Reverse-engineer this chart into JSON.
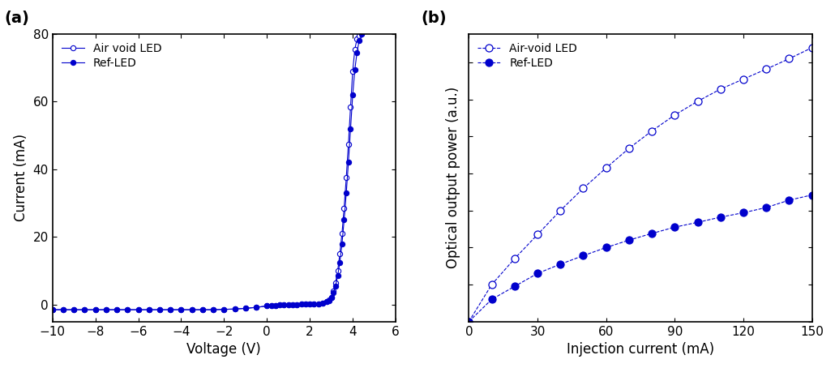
{
  "panel_a": {
    "xlabel": "Voltage (V)",
    "ylabel": "Current (mA)",
    "xlim": [
      -10,
      6
    ],
    "ylim": [
      -5,
      80
    ],
    "xticks": [
      -10,
      -8,
      -6,
      -4,
      -2,
      0,
      2,
      4,
      6
    ],
    "yticks": [
      0,
      20,
      40,
      60,
      80
    ],
    "ref_label": "Ref-LED",
    "air_label": "Air void LED",
    "color": "#0000CC",
    "ref_voltage": [
      -10.0,
      -9.5,
      -9.0,
      -8.5,
      -8.0,
      -7.5,
      -7.0,
      -6.5,
      -6.0,
      -5.5,
      -5.0,
      -4.5,
      -4.0,
      -3.5,
      -3.0,
      -2.5,
      -2.0,
      -1.5,
      -1.0,
      -0.5,
      0.0,
      0.2,
      0.4,
      0.6,
      0.8,
      1.0,
      1.2,
      1.4,
      1.6,
      1.8,
      2.0,
      2.2,
      2.4,
      2.6,
      2.8,
      2.9,
      3.0,
      3.1,
      3.2,
      3.3,
      3.4,
      3.5,
      3.6,
      3.7,
      3.8,
      3.9,
      4.0,
      4.1,
      4.2,
      4.3,
      4.4
    ],
    "ref_current": [
      -1.5,
      -1.5,
      -1.5,
      -1.5,
      -1.5,
      -1.5,
      -1.5,
      -1.5,
      -1.5,
      -1.5,
      -1.5,
      -1.5,
      -1.5,
      -1.5,
      -1.5,
      -1.5,
      -1.4,
      -1.3,
      -1.1,
      -0.8,
      -0.4,
      -0.3,
      -0.2,
      -0.1,
      0.0,
      0.0,
      0.0,
      0.0,
      0.1,
      0.1,
      0.1,
      0.2,
      0.3,
      0.5,
      0.8,
      1.2,
      2.0,
      3.5,
      5.5,
      8.5,
      12.5,
      18.0,
      25.0,
      33.0,
      42.0,
      52.0,
      62.0,
      69.5,
      74.5,
      78.0,
      80.0
    ],
    "air_voltage": [
      -10.0,
      -9.5,
      -9.0,
      -8.5,
      -8.0,
      -7.5,
      -7.0,
      -6.5,
      -6.0,
      -5.5,
      -5.0,
      -4.5,
      -4.0,
      -3.5,
      -3.0,
      -2.5,
      -2.0,
      -1.5,
      -1.0,
      -0.5,
      0.0,
      0.2,
      0.4,
      0.6,
      0.8,
      1.0,
      1.2,
      1.4,
      1.6,
      1.8,
      2.0,
      2.2,
      2.4,
      2.6,
      2.8,
      2.9,
      3.0,
      3.1,
      3.2,
      3.3,
      3.4,
      3.5,
      3.6,
      3.7,
      3.8,
      3.9,
      4.0,
      4.1,
      4.2,
      4.3,
      4.4
    ],
    "air_current": [
      -1.5,
      -1.5,
      -1.5,
      -1.5,
      -1.5,
      -1.5,
      -1.5,
      -1.5,
      -1.5,
      -1.5,
      -1.5,
      -1.5,
      -1.5,
      -1.5,
      -1.5,
      -1.5,
      -1.4,
      -1.3,
      -1.1,
      -0.8,
      -0.4,
      -0.3,
      -0.2,
      -0.1,
      0.0,
      0.0,
      0.0,
      0.0,
      0.1,
      0.1,
      0.1,
      0.2,
      0.3,
      0.5,
      0.9,
      1.4,
      2.2,
      4.0,
      6.5,
      10.0,
      15.0,
      21.0,
      28.5,
      37.5,
      47.5,
      58.5,
      69.0,
      75.5,
      78.5,
      79.5,
      80.5
    ]
  },
  "panel_b": {
    "xlabel": "Injection current (mA)",
    "ylabel": "Optical output power (a.u.)",
    "xlim": [
      0,
      150
    ],
    "xticks": [
      0,
      30,
      60,
      90,
      120,
      150
    ],
    "ref_label": "Ref-LED",
    "air_label": "Air-void LED",
    "color": "#0000CC",
    "ref_current": [
      10,
      20,
      30,
      40,
      50,
      60,
      70,
      80,
      90,
      100,
      110,
      120,
      130,
      140,
      150
    ],
    "ref_power": [
      0.06,
      0.095,
      0.13,
      0.155,
      0.178,
      0.2,
      0.22,
      0.238,
      0.255,
      0.268,
      0.282,
      0.294,
      0.308,
      0.328,
      0.342
    ],
    "air_current": [
      10,
      20,
      30,
      40,
      50,
      60,
      70,
      80,
      90,
      100,
      110,
      120,
      130,
      140,
      150
    ],
    "air_power": [
      0.1,
      0.17,
      0.235,
      0.3,
      0.36,
      0.415,
      0.468,
      0.515,
      0.558,
      0.595,
      0.628,
      0.655,
      0.682,
      0.71,
      0.74
    ]
  }
}
